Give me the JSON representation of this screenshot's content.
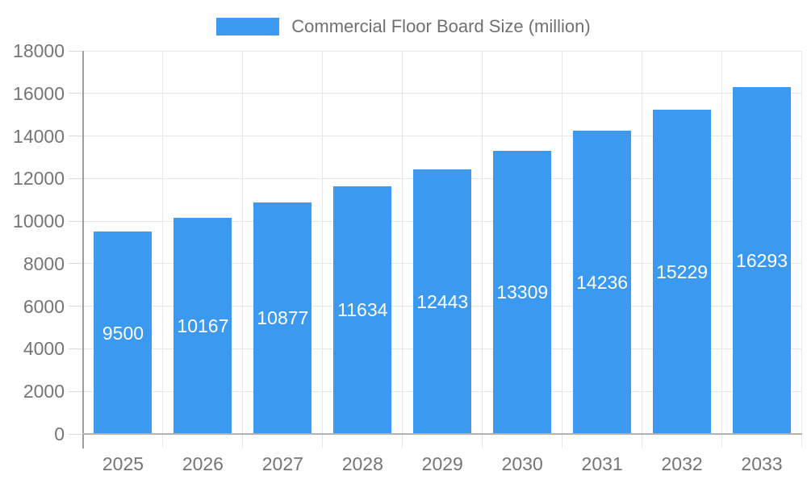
{
  "legend": {
    "label": "Commercial Floor Board Size (million)"
  },
  "chart_data": {
    "type": "bar",
    "title": "Commercial Floor Board Size (million)",
    "categories": [
      "2025",
      "2026",
      "2027",
      "2028",
      "2029",
      "2030",
      "2031",
      "2032",
      "2033"
    ],
    "values": [
      9500,
      10167,
      10877,
      11634,
      12443,
      13309,
      14236,
      15229,
      16293
    ],
    "bar_value_labels": [
      "9500",
      "10167",
      "10877",
      "11634",
      "12443",
      "13309",
      "14236",
      "15229",
      "16293"
    ],
    "xlabel": "",
    "ylabel": "",
    "ylim": [
      0,
      18000
    ],
    "y_ticks": [
      0,
      2000,
      4000,
      6000,
      8000,
      10000,
      12000,
      14000,
      16000,
      18000
    ],
    "grid": "horizontal and vertical light gray gridlines",
    "legend_position": "top-center",
    "value_label_position": "inside-bar-vertical-center"
  },
  "colors": {
    "bar": "#3B99EF",
    "bar_value_label": "#FFFFFF",
    "axis_text": "#757575",
    "title_text": "#707070",
    "grid_line": "#E6E6E6",
    "tick_line": "#D9D9D9",
    "y_axis_line": "#9E9E9E",
    "x_axis_line": "#B3B3B3",
    "background": "#FFFFFF"
  }
}
